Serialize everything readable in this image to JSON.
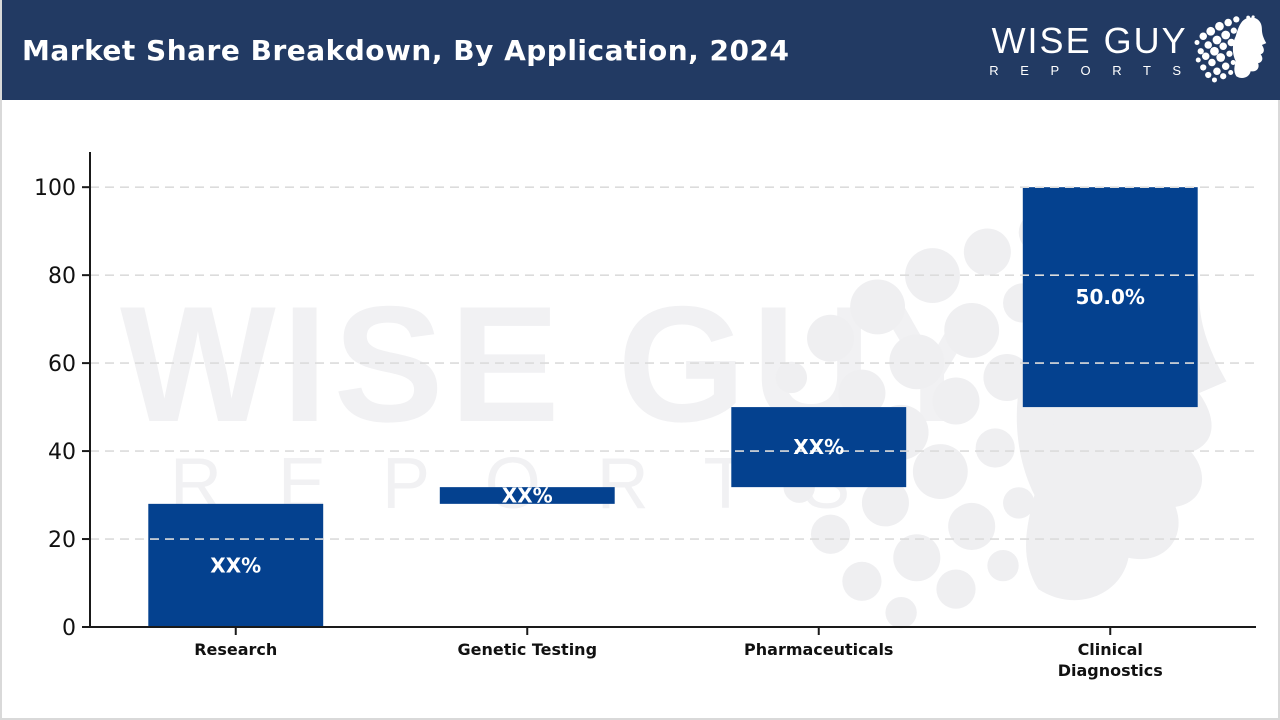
{
  "header": {
    "title": "Market Share Breakdown, By Application, 2024",
    "logo": {
      "wordmark": "WISE GUY",
      "subtitle": "R E P O R T S"
    }
  },
  "watermark": {
    "wordmark": "WISE GUY",
    "subtitle": "R E P O R T S"
  },
  "colors": {
    "header_bg": "#223A63",
    "title_text": "#FFFFFF",
    "bar": "#04418F",
    "bar_label_text": "#FFFFFF",
    "gridline": "#DCDCDC",
    "axis_line": "#1A1A1A",
    "tick_text": "#111111",
    "category_text": "#111111",
    "watermark_gray": "#F1F1F3",
    "frame_border": "#D9D9D9"
  },
  "chart_data": {
    "type": "bar",
    "subtype": "floating-waterfall",
    "title": "Market Share Breakdown, By Application, 2024",
    "categories": [
      "Research",
      "Genetic Testing",
      "Pharmaceuticals",
      "Clinical Diagnostics"
    ],
    "category_label_lines": [
      [
        "Research"
      ],
      [
        "Genetic Testing"
      ],
      [
        "Pharmaceuticals"
      ],
      [
        "Clinical",
        "Diagnostics"
      ]
    ],
    "segments": [
      {
        "category": "Research",
        "start": 0,
        "end": 28,
        "label": "XX%"
      },
      {
        "category": "Genetic Testing",
        "start": 28,
        "end": 31.8,
        "label": "XX%"
      },
      {
        "category": "Pharmaceuticals",
        "start": 31.8,
        "end": 50,
        "label": "XX%"
      },
      {
        "category": "Clinical Diagnostics",
        "start": 50,
        "end": 100,
        "label": "50.0%"
      }
    ],
    "yticks": [
      0,
      20,
      40,
      60,
      80,
      100
    ],
    "ylim": [
      0,
      108
    ],
    "xlabel": "",
    "ylabel": "",
    "grid": {
      "horizontal": true,
      "style": "dashed"
    },
    "legend": "none"
  }
}
